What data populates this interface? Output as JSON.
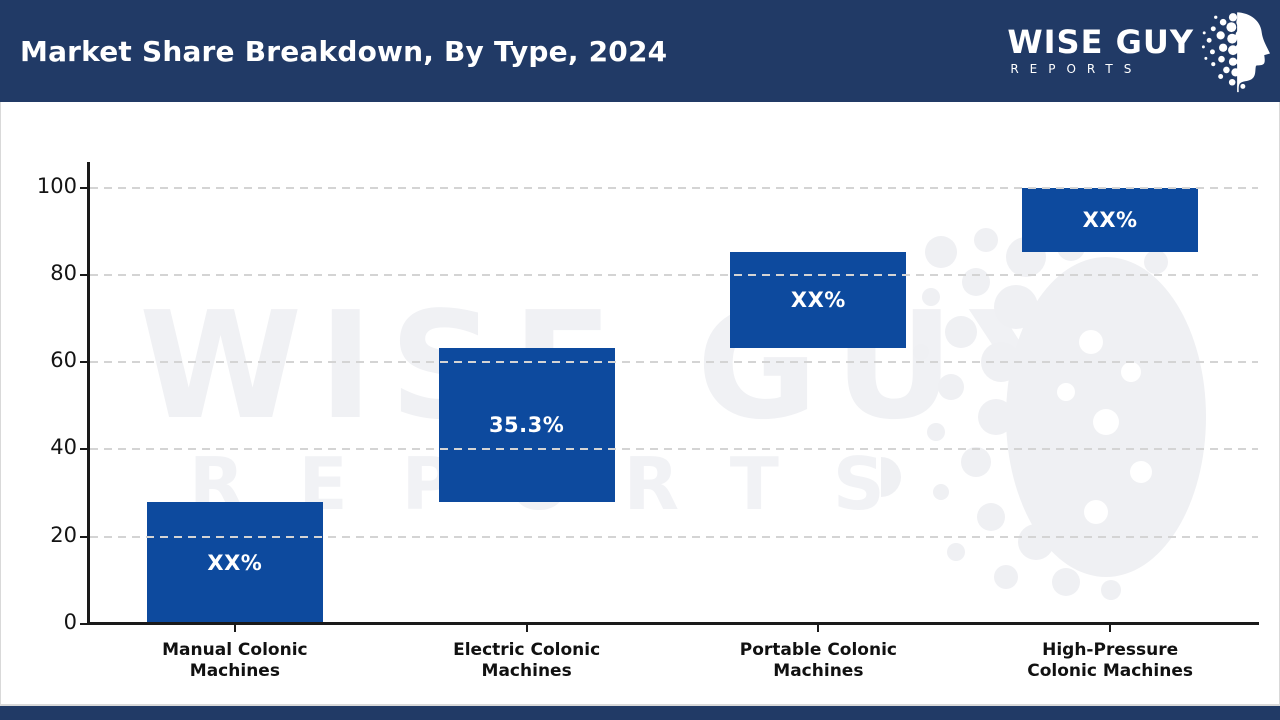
{
  "header": {
    "title": "Market Share Breakdown, By Type, 2024",
    "logo": {
      "name": "WISE GUY",
      "sub": "REPORTS"
    }
  },
  "watermark": {
    "name": "WISE GUY",
    "sub": "REPORTS"
  },
  "colors": {
    "header_bg": "#213a66",
    "footer_bg": "#213a66",
    "bar": "#0d4a9e",
    "grid": "#d4d4d4",
    "axis": "#1a1a1a"
  },
  "chart_data": {
    "type": "bar",
    "subtype": "waterfall-floating-bars",
    "title": "Market Share Breakdown, By Type, 2024",
    "categories": [
      {
        "line1": "Manual Colonic",
        "line2": "Machines"
      },
      {
        "line1": "Electric Colonic",
        "line2": "Machines"
      },
      {
        "line1": "Portable Colonic",
        "line2": "Machines"
      },
      {
        "line1": "High-Pressure",
        "line2": "Colonic Machines"
      }
    ],
    "segments": [
      {
        "category": "Manual Colonic Machines",
        "start": 0,
        "end": 28,
        "value_label": "XX%"
      },
      {
        "category": "Electric Colonic Machines",
        "start": 28,
        "end": 63.3,
        "value_label": "35.3%"
      },
      {
        "category": "Portable Colonic Machines",
        "start": 63.3,
        "end": 85.3,
        "value_label": "XX%"
      },
      {
        "category": "High-Pressure Colonic Machines",
        "start": 85.3,
        "end": 100,
        "value_label": "XX%"
      }
    ],
    "y_ticks": [
      "0",
      "20",
      "40",
      "60",
      "80",
      "100"
    ],
    "ylim": [
      0,
      105.6
    ],
    "xlabel": "",
    "ylabel": "",
    "grid": "horizontal-dashed",
    "gridlines_above_bars": true,
    "legend": "none"
  }
}
